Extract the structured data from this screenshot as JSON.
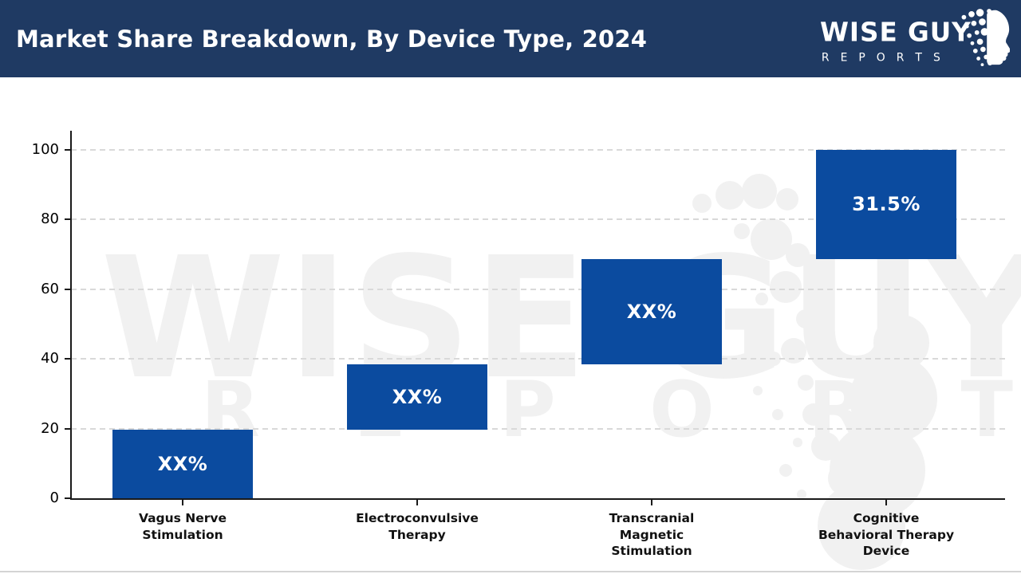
{
  "header": {
    "title": "Market Share Breakdown, By Device Type, 2024",
    "logo": {
      "primary": "WISE GUY",
      "secondary": "R E P O R T S"
    }
  },
  "watermark": {
    "primary": "WISE GUY",
    "secondary": "R E P O R T S"
  },
  "colors": {
    "banner": "#1f3a63",
    "bar": "#0b4b9f",
    "bar_label": "#ffffff",
    "grid": "#d9d9d9",
    "axis": "#1a1a1a",
    "watermark": "#f1f1f1"
  },
  "chart_data": {
    "type": "bar",
    "subtype": "waterfall",
    "title": "Market Share Breakdown, By Device Type, 2024",
    "categories": [
      [
        "Vagus Nerve",
        "Stimulation"
      ],
      [
        "Electroconvulsive",
        "Therapy"
      ],
      [
        "Transcranial",
        "Magnetic",
        "Stimulation"
      ],
      [
        "Cognitive",
        "Behavioral Therapy",
        "Device"
      ]
    ],
    "bars": [
      {
        "label": "XX%",
        "start": 0,
        "end": 19.6
      },
      {
        "label": "XX%",
        "start": 19.6,
        "end": 38.3
      },
      {
        "label": "XX%",
        "start": 38.3,
        "end": 68.5
      },
      {
        "label": "31.5%",
        "start": 68.5,
        "end": 100
      }
    ],
    "yticks": [
      0,
      20,
      40,
      60,
      80,
      100
    ],
    "ylim": [
      0,
      100
    ],
    "xlabel": "",
    "ylabel": "",
    "grid": "horizontal-dashed",
    "legend": "none"
  }
}
